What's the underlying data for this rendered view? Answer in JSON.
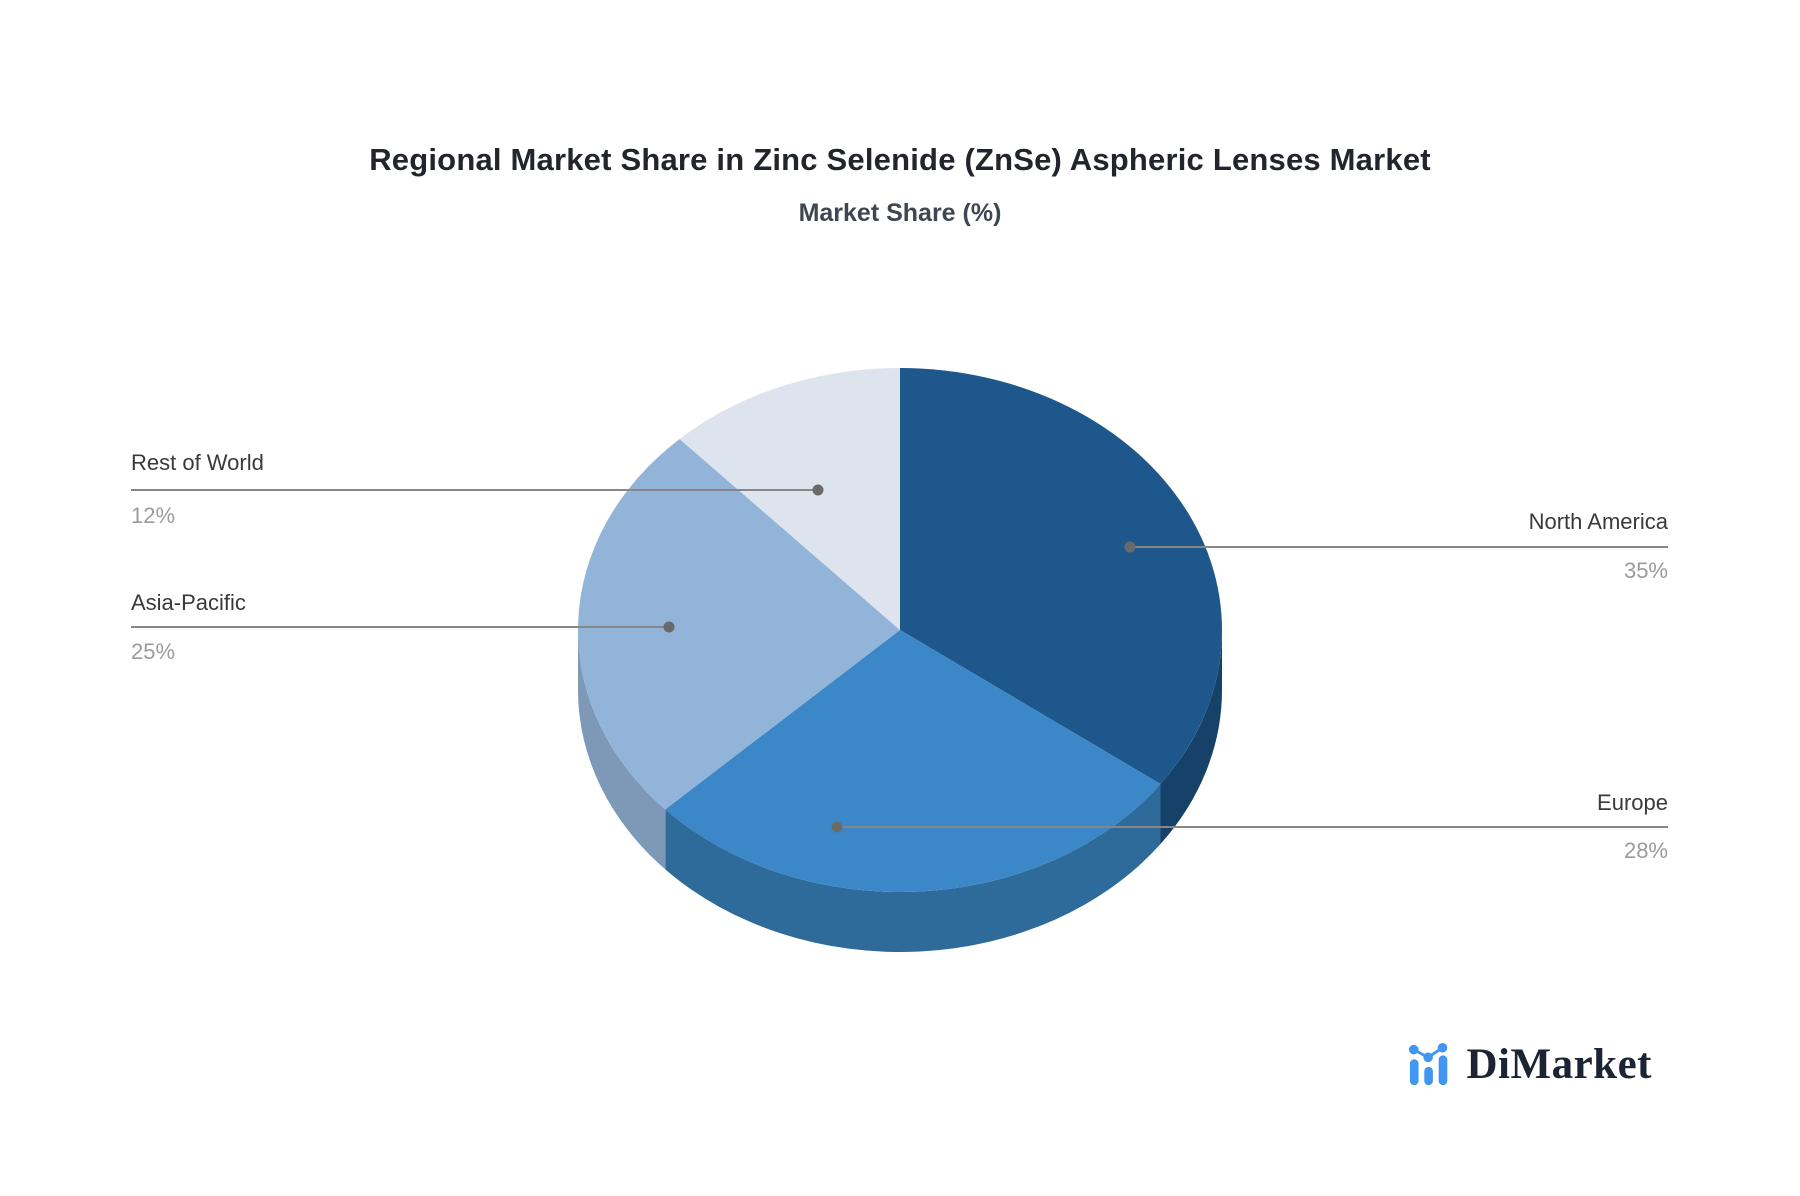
{
  "header": {
    "title": "Regional Market Share in Zinc Selenide (ZnSe) Aspheric Lenses Market",
    "subtitle": "Market Share (%)"
  },
  "chart_data": {
    "type": "pie",
    "style": "3d-pie",
    "title": "Regional Market Share in Zinc Selenide (ZnSe) Aspheric Lenses Market",
    "subtitle": "Market Share (%)",
    "unit": "%",
    "start_angle_deg": 90,
    "direction": "clockwise",
    "legend_position": "callout-labels",
    "categories": [
      "North America",
      "Europe",
      "Asia-Pacific",
      "Rest of World"
    ],
    "values": [
      35,
      28,
      25,
      12
    ],
    "slices": [
      {
        "label": "North America",
        "value": 35,
        "value_label": "35%",
        "color": "#1E578C",
        "depth_color": "#16426A",
        "label_side": "right"
      },
      {
        "label": "Europe",
        "value": 28,
        "value_label": "28%",
        "color": "#3B87C8",
        "depth_color": "#2E6B9B",
        "label_side": "right"
      },
      {
        "label": "Asia-Pacific",
        "value": 25,
        "value_label": "25%",
        "color": "#92B4D8",
        "depth_color": "#7E98B8",
        "label_side": "left"
      },
      {
        "label": "Rest of World",
        "value": 12,
        "value_label": "12%",
        "color": "#DDE4EE",
        "depth_color": "#C3CDDB",
        "label_side": "left"
      }
    ]
  },
  "callout_style": {
    "line_color": "#878787",
    "dot_color": "#6A6A6A",
    "label_color": "#3A3A3A",
    "value_color": "#9B9B9B"
  },
  "branding": {
    "logo_text": "DiMarket",
    "logo_text_color": "#1B2433",
    "logo_icon": "bar-line-chart-icon",
    "logo_icon_color": "#4196F1"
  }
}
